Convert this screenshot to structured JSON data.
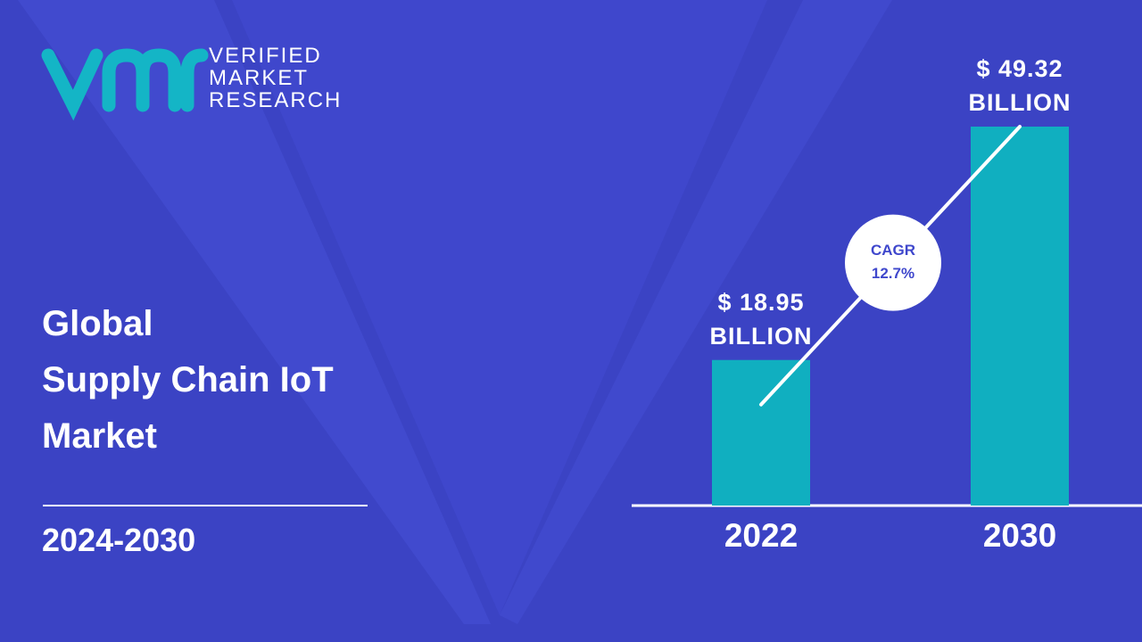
{
  "brand": {
    "name": "VERIFIED MARKET RESEARCH"
  },
  "chart_data": {
    "type": "bar",
    "title": [
      "Global",
      "Supply Chain IoT",
      "Market"
    ],
    "subtitle": "2024-2030",
    "categories": [
      "2022",
      "2030"
    ],
    "values": [
      18.95,
      49.32
    ],
    "value_labels": [
      "$ 18.95 BILLION",
      "$ 49.32 BILLION"
    ],
    "color": "#10afc0",
    "annotation": "CAGR 12.7%"
  }
}
